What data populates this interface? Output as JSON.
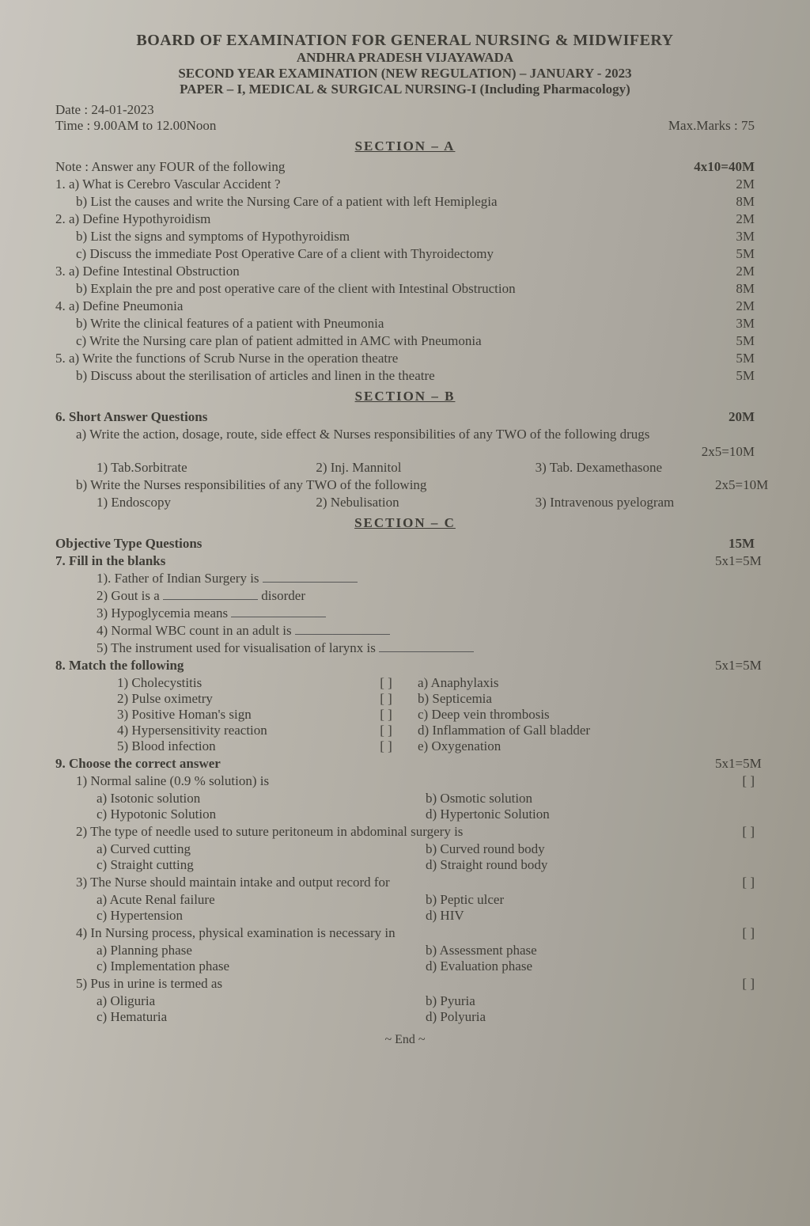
{
  "header": {
    "line1": "BOARD OF EXAMINATION FOR GENERAL NURSING & MIDWIFERY",
    "line2": "ANDHRA PRADESH VIJAYAWADA",
    "line3": "SECOND YEAR EXAMINATION (NEW REGULATION) – JANUARY - 2023",
    "line4": "PAPER – I, MEDICAL & SURGICAL NURSING-I (Including Pharmacology)"
  },
  "meta": {
    "date_label": "Date : 24-01-2023",
    "time_label": "Time : 9.00AM to 12.00Noon",
    "max_label": "Max.Marks : 75"
  },
  "sectionA": "SECTION – A",
  "note": {
    "text": "Note : Answer any FOUR of the following",
    "marks": "4x10=40M"
  },
  "q1": {
    "a": "1. a) What is Cerebro Vascular Accident ?",
    "am": "2M",
    "b": "b) List the causes and write the Nursing Care of a patient with left Hemiplegia",
    "bm": "8M"
  },
  "q2": {
    "a": "2. a) Define Hypothyroidism",
    "am": "2M",
    "b": "b) List the signs and symptoms of Hypothyroidism",
    "bm": "3M",
    "c": "c) Discuss the immediate Post Operative Care of a client with Thyroidectomy",
    "cm": "5M"
  },
  "q3": {
    "a": "3. a) Define Intestinal Obstruction",
    "am": "2M",
    "b": "b) Explain the pre and post operative care of the client with Intestinal Obstruction",
    "bm": "8M"
  },
  "q4": {
    "a": "4. a) Define Pneumonia",
    "am": "2M",
    "b": "b) Write the clinical features of a patient with Pneumonia",
    "bm": "3M",
    "c": "c) Write the Nursing care plan of patient admitted in AMC with Pneumonia",
    "cm": "5M"
  },
  "q5": {
    "a": "5. a) Write the functions of Scrub Nurse in the operation theatre",
    "am": "5M",
    "b": "b) Discuss about the sterilisation of articles and linen in the theatre",
    "bm": "5M"
  },
  "sectionB": "SECTION – B",
  "short": {
    "title": "6. Short Answer Questions",
    "marks": "20M"
  },
  "sa": {
    "a": "a) Write the action, dosage, route, side effect & Nurses responsibilities of any TWO of the following drugs",
    "am": "2x5=10M",
    "a1": "1) Tab.Sorbitrate",
    "a2": "2) Inj. Mannitol",
    "a3": "3) Tab. Dexamethasone",
    "b": "b) Write the Nurses responsibilities of any TWO of the following",
    "bm": "2x5=10M",
    "b1": "1) Endoscopy",
    "b2": "2) Nebulisation",
    "b3": "3) Intravenous pyelogram"
  },
  "sectionC": "SECTION – C",
  "obj": {
    "title": "Objective Type Questions",
    "marks": "15M"
  },
  "fill": {
    "title": "7. Fill in the blanks",
    "marks": "5x1=5M",
    "i1": "1). Father of Indian Surgery is",
    "i2a": "2) Gout is a",
    "i2b": "disorder",
    "i3": "3) Hypoglycemia means",
    "i4": "4) Normal WBC count in an adult is",
    "i5": "5) The instrument used for visualisation of larynx is"
  },
  "match": {
    "title": "8. Match the following",
    "marks": "5x1=5M",
    "l1": "1) Cholecystitis",
    "r1": "a) Anaphylaxis",
    "l2": "2) Pulse oximetry",
    "r2": "b) Septicemia",
    "l3": "3) Positive Homan's sign",
    "r3": "c) Deep vein thrombosis",
    "l4": "4) Hypersensitivity reaction",
    "r4": "d) Inflammation of Gall bladder",
    "l5": "5) Blood infection",
    "r5": "e) Oxygenation"
  },
  "mcq": {
    "title": "9. Choose the correct answer",
    "marks": "5x1=5M",
    "q1": "1) Normal saline (0.9 % solution) is",
    "q1a": "a) Isotonic solution",
    "q1b": "b) Osmotic solution",
    "q1c": "c) Hypotonic Solution",
    "q1d": "d) Hypertonic Solution",
    "q2": "2) The type of needle used to suture peritoneum in abdominal surgery is",
    "q2a": "a) Curved cutting",
    "q2b": "b) Curved round body",
    "q2c": "c) Straight cutting",
    "q2d": "d) Straight round body",
    "q3": "3) The Nurse should maintain intake and output record for",
    "q3a": "a) Acute Renal failure",
    "q3b": "b) Peptic ulcer",
    "q3c": "c) Hypertension",
    "q3d": "d) HIV",
    "q4": "4) In Nursing process, physical examination is necessary in",
    "q4a": "a) Planning phase",
    "q4b": "b) Assessment phase",
    "q4c": "c) Implementation phase",
    "q4d": "d) Evaluation phase",
    "q5": "5) Pus in urine is termed as",
    "q5a": "a) Oliguria",
    "q5b": "b) Pyuria",
    "q5c": "c) Hematuria",
    "q5d": "d) Polyuria"
  },
  "box": "[    ]",
  "bracket": "[   ]",
  "end": "~ End ~"
}
